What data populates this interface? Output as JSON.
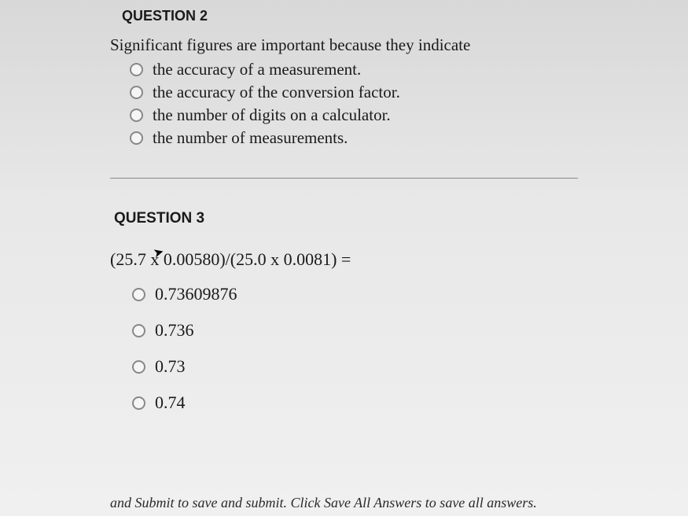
{
  "question2": {
    "header": "QUESTION 2",
    "prompt": "Significant figures are important because they indicate",
    "options": [
      "the accuracy of a measurement.",
      "the accuracy of the conversion factor.",
      "the number of digits on a calculator.",
      "the number of measurements."
    ]
  },
  "question3": {
    "header": "QUESTION 3",
    "prompt": "(25.7 x 0.00580)/(25.0 x 0.0081) =",
    "options": [
      "0.73609876",
      "0.736",
      "0.73",
      "0.74"
    ]
  },
  "footer": {
    "text": "and Submit to save and submit. Click Save All Answers to save all answers."
  },
  "colors": {
    "background_top": "#d8d8d8",
    "background_bottom": "#f0f0f0",
    "text": "#1a1a1a",
    "radio_border": "#888888",
    "divider": "#888888"
  }
}
